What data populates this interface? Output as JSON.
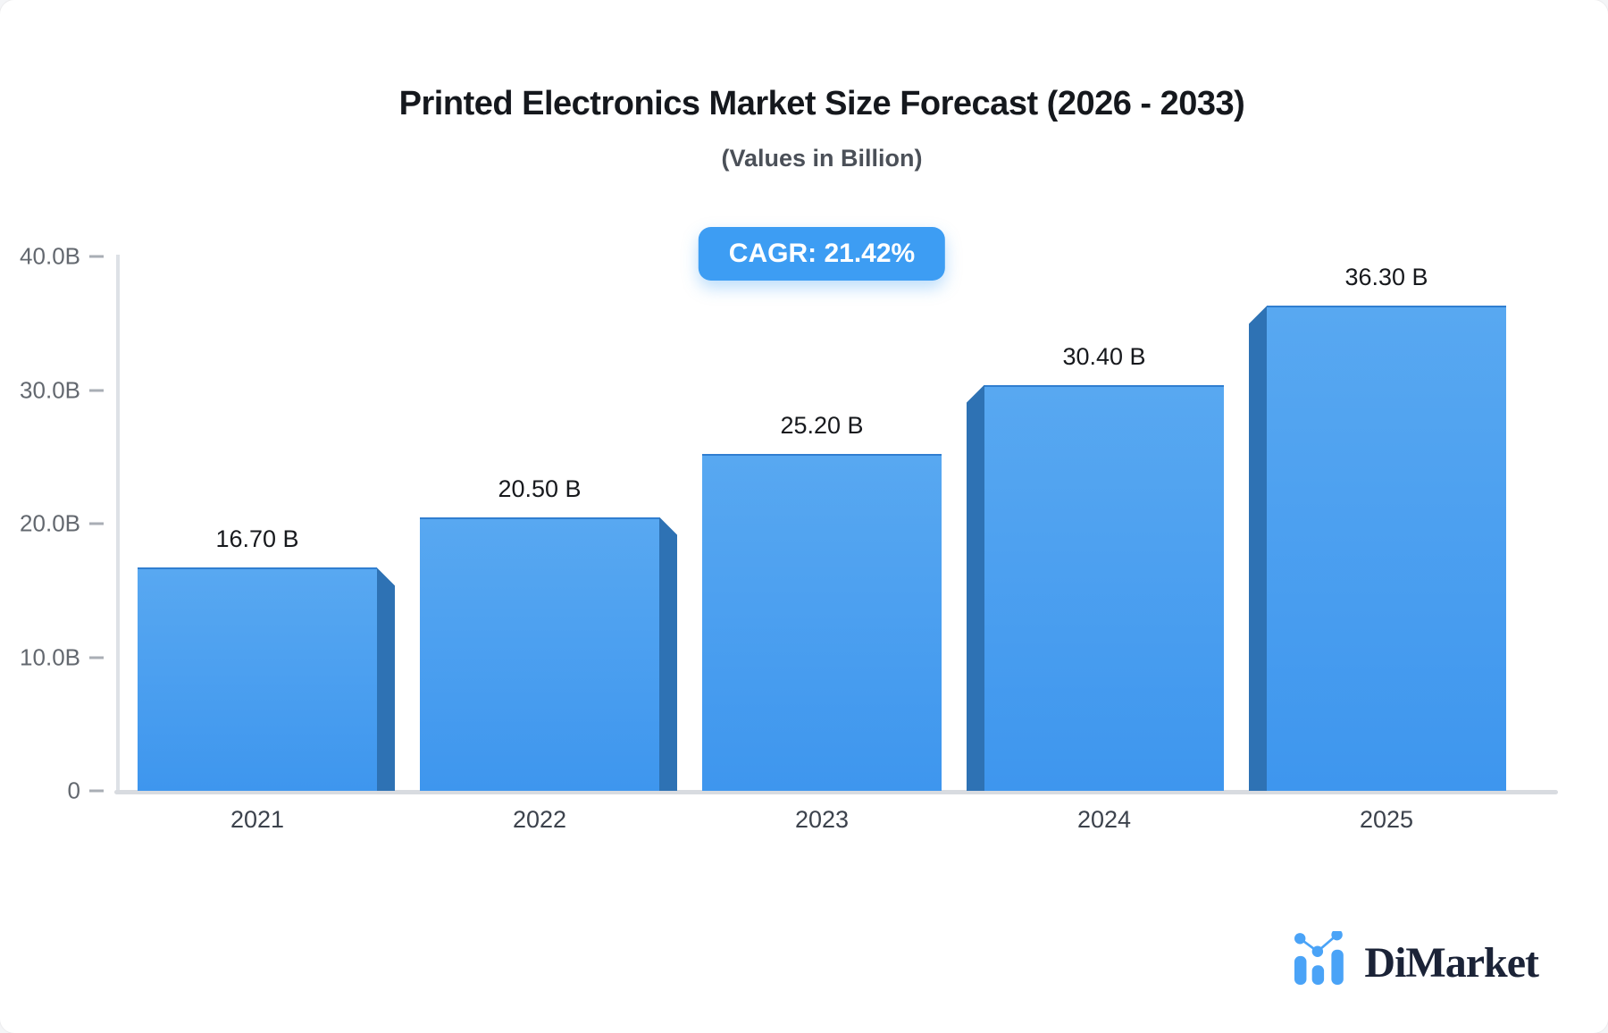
{
  "header": {
    "title": "Printed Electronics Market Size Forecast (2026 - 2033)",
    "subtitle": "(Values in Billion)"
  },
  "badge": {
    "label": "CAGR: 21.42%"
  },
  "chart_data": {
    "type": "bar",
    "title": "Printed Electronics Market Size Forecast (2026 - 2033)",
    "subtitle": "(Values in Billion)",
    "cagr_percent": 21.42,
    "categories": [
      "2021",
      "2022",
      "2023",
      "2024",
      "2025"
    ],
    "values": [
      16.7,
      20.5,
      25.2,
      30.4,
      36.3
    ],
    "value_labels": [
      "16.70 B",
      "20.50 B",
      "25.20 B",
      "30.40 B",
      "36.30 B"
    ],
    "unit": "Billion",
    "ylim": [
      0,
      40
    ],
    "yticks": [
      {
        "value": 0,
        "label": "0"
      },
      {
        "value": 10,
        "label": "10.0B"
      },
      {
        "value": 20,
        "label": "20.0B"
      },
      {
        "value": 30,
        "label": "30.0B"
      },
      {
        "value": 40,
        "label": "40.0B"
      }
    ],
    "grid": false,
    "legend": "none",
    "style": "3d-perspective-bars"
  },
  "logo": {
    "text": "DiMarket",
    "icon": "mini-bar-chart-icon"
  },
  "colors": {
    "bar_face_top": "#58a8f1",
    "bar_face_bottom": "#3e96ee",
    "bar_side": "#2e72b4",
    "badge_background": "#3d9df3",
    "badge_text": "#ffffff",
    "axis_line": "#dde1e6",
    "baseline": "#d8dbe0",
    "ytick_text": "#63686f",
    "xtick_text": "#3c424c",
    "value_text": "#17191d",
    "title_text": "#15181d",
    "subtitle_text": "#4b5058",
    "logo_blue": "#4aa3f7",
    "logo_navy": "#1b2337"
  }
}
